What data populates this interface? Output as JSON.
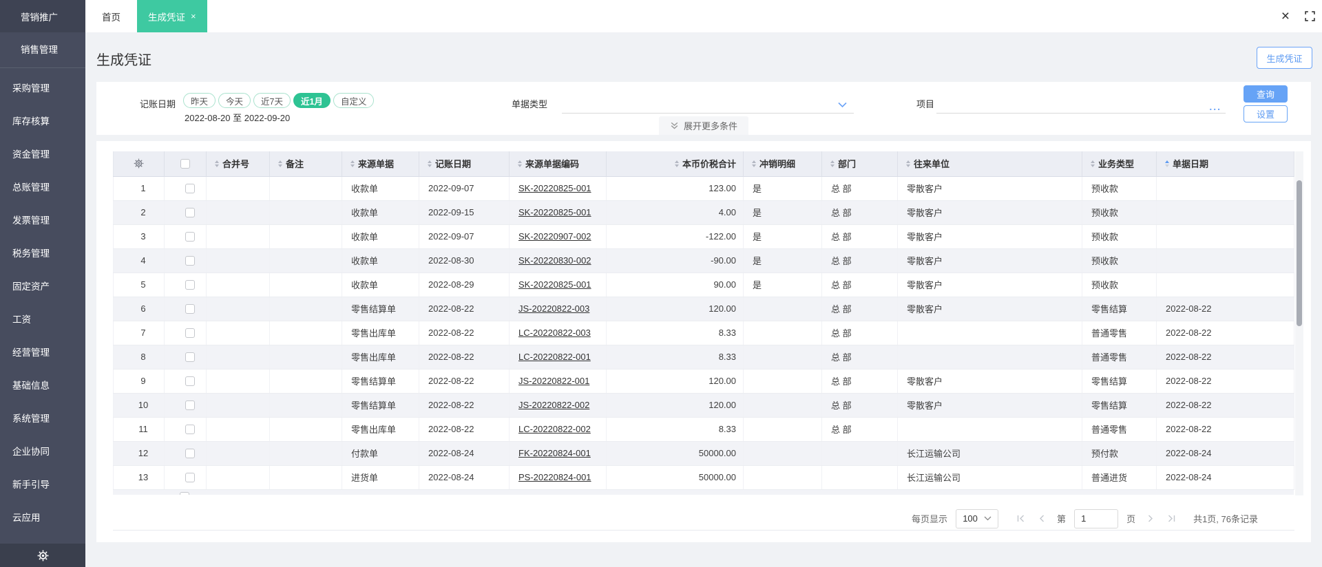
{
  "colors": {
    "accent_green": "#3EC9A1",
    "selected_green": "#2EC393",
    "accent_blue": "#5E9BF2",
    "sidebar_bg": "#474C5E"
  },
  "sidebar": {
    "top_item": "营销推广",
    "sub_item": "销售管理",
    "items": [
      "采购管理",
      "库存核算",
      "资金管理",
      "总账管理",
      "发票管理",
      "税务管理",
      "固定资产",
      "工资",
      "经营管理",
      "基础信息",
      "系统管理",
      "企业协同",
      "新手引导",
      "云应用"
    ]
  },
  "tabs": {
    "home": "首页",
    "active": "生成凭证",
    "close": "×"
  },
  "window": {
    "close": "×"
  },
  "page": {
    "title": "生成凭证",
    "generate_button": "生成凭证"
  },
  "filters": {
    "date_label": "记账日期",
    "quick_options": [
      "昨天",
      "今天",
      "近7天",
      "近1月",
      "自定义"
    ],
    "selected_quick": "近1月",
    "date_range": "2022-08-20 至 2022-09-20",
    "doc_type_label": "单据类型",
    "project_label": "项目",
    "project_more": "...",
    "search_button": "查询",
    "settings_button": "设置",
    "expand_more": "展开更多条件"
  },
  "table": {
    "columns": [
      "合并号",
      "备注",
      "来源单据",
      "记账日期",
      "来源单据编码",
      "本币价税合计",
      "冲销明细",
      "部门",
      "往来单位",
      "业务类型",
      "单据日期"
    ],
    "sorted_column": "单据日期",
    "sort_direction": "asc",
    "rows": [
      {
        "source_doc": "收款单",
        "booking_date": "2022-09-07",
        "source_doc_code": "SK-20220825-001",
        "amount": "123.00",
        "reversal": "是",
        "department": "总 部",
        "counterparty": "零散客户",
        "business_type": "预收款",
        "doc_date": ""
      },
      {
        "source_doc": "收款单",
        "booking_date": "2022-09-15",
        "source_doc_code": "SK-20220825-001",
        "amount": "4.00",
        "reversal": "是",
        "department": "总 部",
        "counterparty": "零散客户",
        "business_type": "预收款",
        "doc_date": ""
      },
      {
        "source_doc": "收款单",
        "booking_date": "2022-09-07",
        "source_doc_code": "SK-20220907-002",
        "amount": "-122.00",
        "reversal": "是",
        "department": "总 部",
        "counterparty": "零散客户",
        "business_type": "预收款",
        "doc_date": ""
      },
      {
        "source_doc": "收款单",
        "booking_date": "2022-08-30",
        "source_doc_code": "SK-20220830-002",
        "amount": "-90.00",
        "reversal": "是",
        "department": "总 部",
        "counterparty": "零散客户",
        "business_type": "预收款",
        "doc_date": ""
      },
      {
        "source_doc": "收款单",
        "booking_date": "2022-08-29",
        "source_doc_code": "SK-20220825-001",
        "amount": "90.00",
        "reversal": "是",
        "department": "总 部",
        "counterparty": "零散客户",
        "business_type": "预收款",
        "doc_date": ""
      },
      {
        "source_doc": "零售结算单",
        "booking_date": "2022-08-22",
        "source_doc_code": "JS-20220822-003",
        "amount": "120.00",
        "reversal": "",
        "department": "总 部",
        "counterparty": "零散客户",
        "business_type": "零售结算",
        "doc_date": "2022-08-22"
      },
      {
        "source_doc": "零售出库单",
        "booking_date": "2022-08-22",
        "source_doc_code": "LC-20220822-003",
        "amount": "8.33",
        "reversal": "",
        "department": "总 部",
        "counterparty": "",
        "business_type": "普通零售",
        "doc_date": "2022-08-22"
      },
      {
        "source_doc": "零售出库单",
        "booking_date": "2022-08-22",
        "source_doc_code": "LC-20220822-001",
        "amount": "8.33",
        "reversal": "",
        "department": "总 部",
        "counterparty": "",
        "business_type": "普通零售",
        "doc_date": "2022-08-22"
      },
      {
        "source_doc": "零售结算单",
        "booking_date": "2022-08-22",
        "source_doc_code": "JS-20220822-001",
        "amount": "120.00",
        "reversal": "",
        "department": "总 部",
        "counterparty": "零散客户",
        "business_type": "零售结算",
        "doc_date": "2022-08-22"
      },
      {
        "source_doc": "零售结算单",
        "booking_date": "2022-08-22",
        "source_doc_code": "JS-20220822-002",
        "amount": "120.00",
        "reversal": "",
        "department": "总 部",
        "counterparty": "零散客户",
        "business_type": "零售结算",
        "doc_date": "2022-08-22"
      },
      {
        "source_doc": "零售出库单",
        "booking_date": "2022-08-22",
        "source_doc_code": "LC-20220822-002",
        "amount": "8.33",
        "reversal": "",
        "department": "总 部",
        "counterparty": "",
        "business_type": "普通零售",
        "doc_date": "2022-08-22"
      },
      {
        "source_doc": "付款单",
        "booking_date": "2022-08-24",
        "source_doc_code": "FK-20220824-001",
        "amount": "50000.00",
        "reversal": "",
        "department": "",
        "counterparty": "长江运输公司",
        "business_type": "预付款",
        "doc_date": "2022-08-24"
      },
      {
        "source_doc": "进货单",
        "booking_date": "2022-08-24",
        "source_doc_code": "PS-20220824-001",
        "amount": "50000.00",
        "reversal": "",
        "department": "",
        "counterparty": "长江运输公司",
        "business_type": "普通进货",
        "doc_date": "2022-08-24"
      }
    ]
  },
  "pagination": {
    "per_page_label": "每页显示",
    "per_page_value": "100",
    "page_prefix": "第",
    "page_value": "1",
    "page_suffix": "页",
    "summary": "共1页, 76条记录"
  }
}
